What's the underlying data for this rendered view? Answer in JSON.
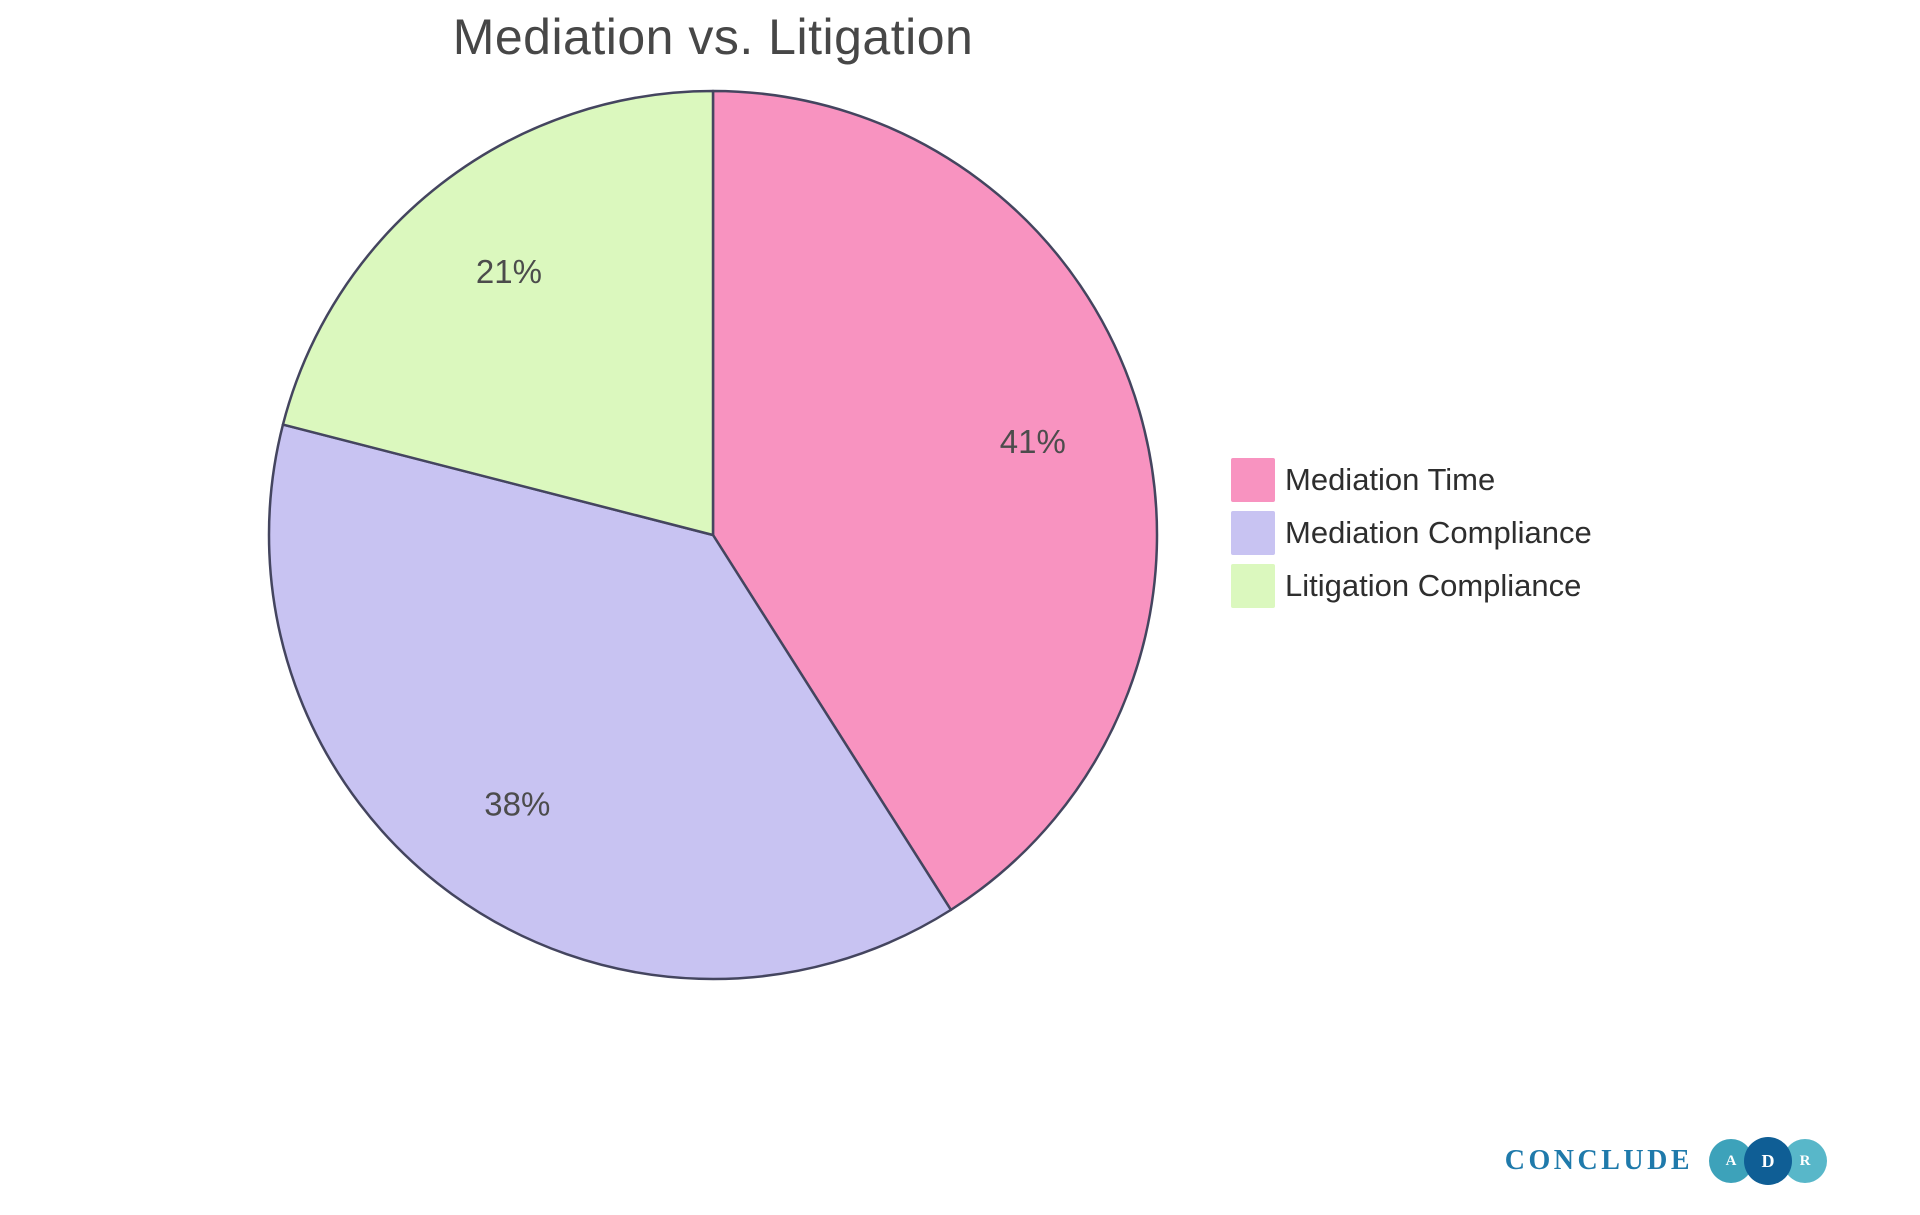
{
  "title": "Mediation vs. Litigation",
  "chart_data": {
    "type": "pie",
    "title": "Mediation vs. Litigation",
    "labels": [
      "Mediation Time",
      "Mediation Compliance",
      "Litigation Compliance"
    ],
    "values": [
      41,
      38,
      21
    ],
    "slice_label_texts": [
      "41%",
      "38%",
      "21%"
    ],
    "colors": [
      "#F893C0",
      "#C8C3F2",
      "#DBF8BE"
    ],
    "slice_border_color": "#44455F",
    "slice_label_color": "#4C4C4C",
    "start_angle_deg": 0,
    "direction": "clockwise",
    "legend_position": "right",
    "legend": [
      "Mediation Time",
      "Mediation Compliance",
      "Litigation Compliance"
    ]
  },
  "logo": {
    "wordmark": "CONCLUDE",
    "wordmark_color": "#1F7AAB",
    "badges": [
      {
        "letter": "A",
        "color": "#3DA2BA"
      },
      {
        "letter": "D",
        "color": "#0F5E95"
      },
      {
        "letter": "R",
        "color": "#58B7C9"
      }
    ]
  }
}
